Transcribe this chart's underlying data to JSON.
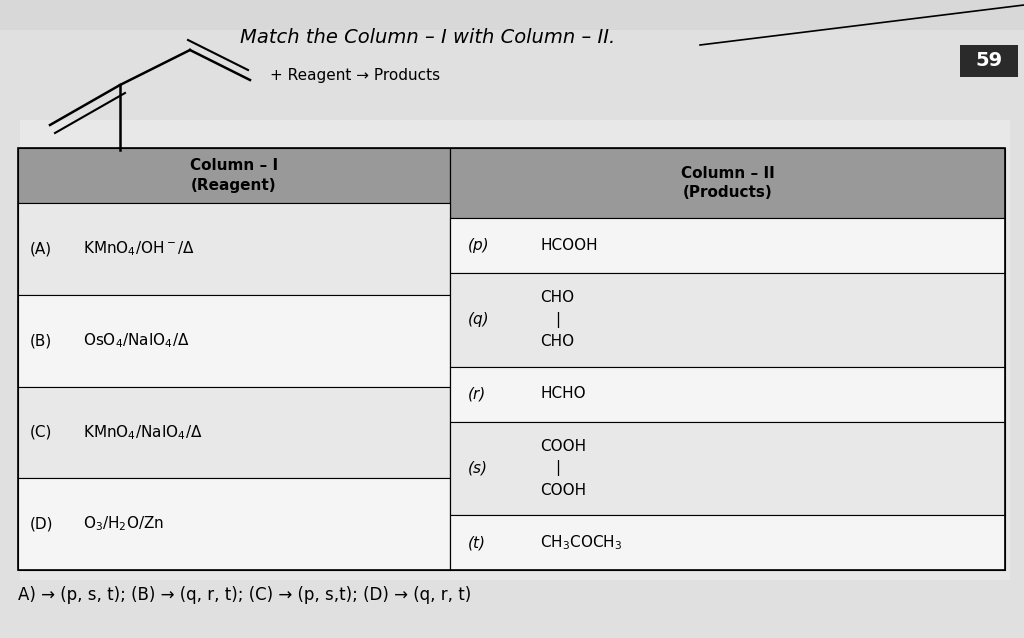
{
  "title": "Match the Column – I with Column – II.",
  "subtitle": "+ Reagent → Products",
  "question_number": "59",
  "col1_header": "Column – I\n(Reagent)",
  "col2_header": "Column – II\n(Products)",
  "col1_labels": [
    "(A)",
    "(B)",
    "(C)",
    "(D)"
  ],
  "col2_labels": [
    "(p)",
    "(q)",
    "(r)",
    "(s)",
    "(t)"
  ],
  "answer": "A) → (p, s, t); (B) → (q, r, t); (C) → (p, s,t); (D) → (q, r, t)",
  "bg_color": "#d4d4d4",
  "header_bg": "#999999",
  "row_bg_odd": "#e8e8e8",
  "row_bg_even": "#f5f5f5",
  "page_bg": "#c0c0c0",
  "badge_bg": "#2a2a2a"
}
